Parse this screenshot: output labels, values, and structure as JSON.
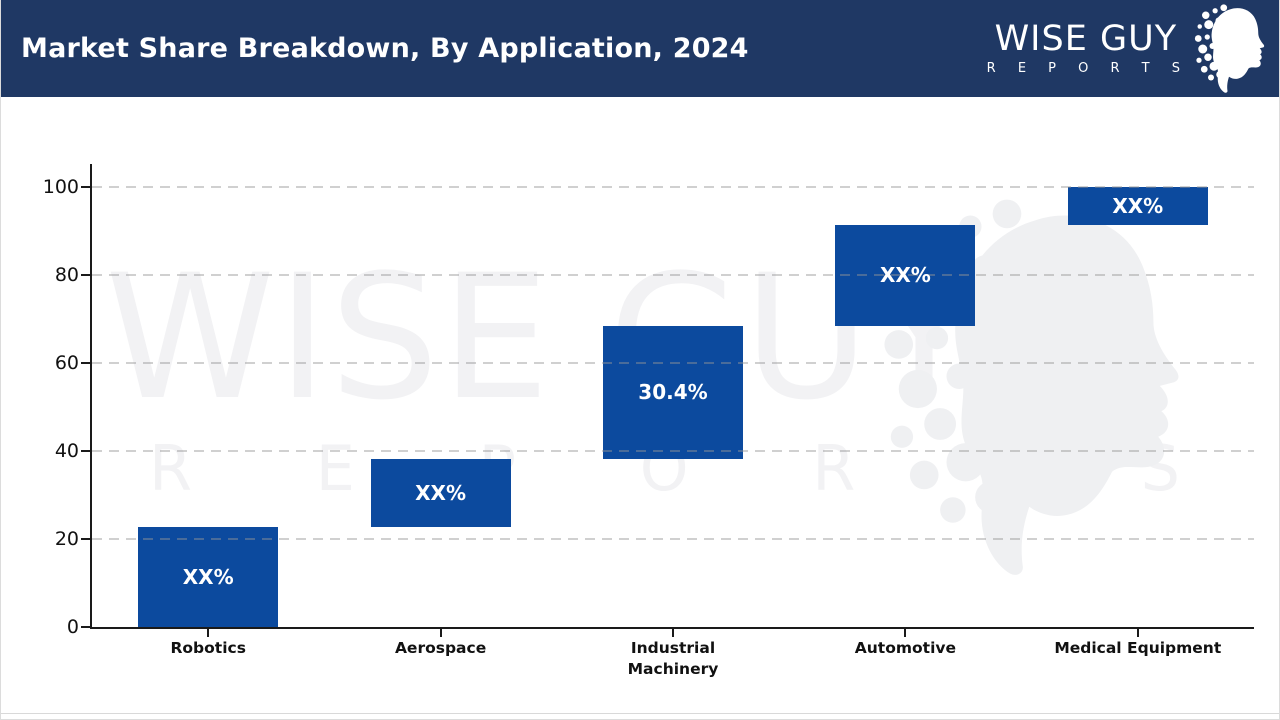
{
  "header": {
    "title": "Market Share Breakdown, By Application, 2024",
    "logo": {
      "name": "WISE GUY",
      "subtitle": "R E P O R T S"
    }
  },
  "watermark": {
    "name": "WISE GUY",
    "subtitle": "R E P O R T S"
  },
  "chart_data": {
    "type": "bar",
    "subtype": "waterfall",
    "title": "Market Share Breakdown, By Application, 2024",
    "xlabel": "",
    "ylabel": "",
    "ylim": [
      0,
      100
    ],
    "yticks": [
      0,
      20,
      40,
      60,
      80,
      100
    ],
    "grid": true,
    "legend": "none",
    "categories": [
      "Robotics",
      "Aerospace",
      "Industrial Machinery",
      "Automotive",
      "Medical Equipment"
    ],
    "category_label_lines": [
      [
        "Robotics"
      ],
      [
        "Aerospace"
      ],
      [
        "Industrial",
        "Machinery"
      ],
      [
        "Automotive"
      ],
      [
        "Medical Equipment"
      ]
    ],
    "segments": [
      {
        "category": "Robotics",
        "start": 0,
        "end": 22.8,
        "value_label": "XX%"
      },
      {
        "category": "Aerospace",
        "start": 22.8,
        "end": 38.1,
        "value_label": "XX%"
      },
      {
        "category": "Industrial Machinery",
        "start": 38.1,
        "end": 68.5,
        "value_label": "30.4%"
      },
      {
        "category": "Automotive",
        "start": 68.5,
        "end": 91.3,
        "value_label": "XX%"
      },
      {
        "category": "Medical Equipment",
        "start": 91.3,
        "end": 100,
        "value_label": "XX%"
      }
    ],
    "style": {
      "bar_color": "#0C4A9E",
      "bar_label_color": "#FFFFFF",
      "gridline_color": "rgba(150,150,150,0.45)",
      "axis_color": "#1A1A1A",
      "tick_label_color": "#111111"
    }
  },
  "colors": {
    "header_bg": "#1F3864",
    "header_text": "#FFFFFF",
    "body_bg": "#FFFFFF",
    "watermark_text": "#F2F2F4",
    "watermark_face": "#EFF0F2"
  }
}
